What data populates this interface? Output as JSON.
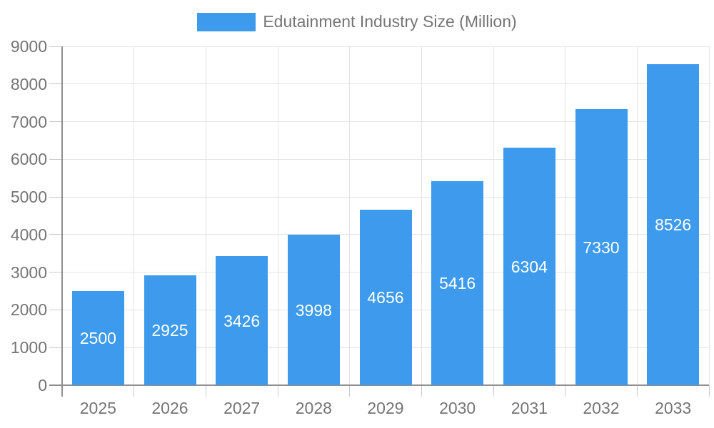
{
  "legend": {
    "label": "Edutainment Industry Size (Million)"
  },
  "colors": {
    "bar": "#3D9AEC",
    "grid": "#E4E4E4",
    "axis": "#8F8F8F",
    "tick": "#C9C9C9",
    "text": "#757575",
    "bar_label_text": "#FFFFFF",
    "background": "#FFFFFF"
  },
  "chart_data": {
    "type": "bar",
    "title": "Edutainment Industry Size (Million)",
    "categories": [
      "2025",
      "2026",
      "2027",
      "2028",
      "2029",
      "2030",
      "2031",
      "2032",
      "2033"
    ],
    "values": [
      2500,
      2925,
      3426,
      3998,
      4656,
      5416,
      6304,
      7330,
      8526
    ],
    "xlabel": "",
    "ylabel": "",
    "ylim": [
      0,
      9000
    ],
    "ytick_step": 1000,
    "yticks": [
      0,
      1000,
      2000,
      3000,
      4000,
      5000,
      6000,
      7000,
      8000,
      9000
    ],
    "grid": true,
    "legend_position": "top-center",
    "value_labels": "inside-center-white"
  }
}
